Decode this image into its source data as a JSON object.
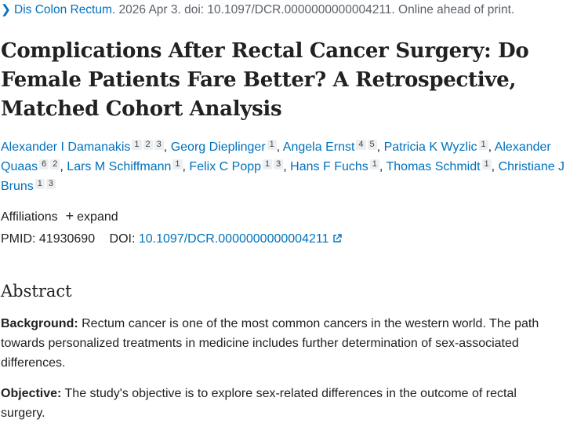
{
  "citation": {
    "journal": "Dis Colon Rectum.",
    "details": "2026 Apr 3. doi: 10.1097/DCR.0000000000004211. Online ahead of print."
  },
  "title": "Complications After Rectal Cancer Surgery: Do Female Patients Fare Better? A Retrospective, Matched Cohort Analysis",
  "author_separator": ",",
  "authors": [
    {
      "name": "Alexander I Damanakis",
      "affiliations": [
        "1",
        "2",
        "3"
      ]
    },
    {
      "name": "Georg Dieplinger",
      "affiliations": [
        "1"
      ]
    },
    {
      "name": "Angela Ernst",
      "affiliations": [
        "4",
        "5"
      ]
    },
    {
      "name": "Patricia K Wyzlic",
      "affiliations": [
        "1"
      ]
    },
    {
      "name": "Alexander Quaas",
      "affiliations": [
        "6",
        "2"
      ]
    },
    {
      "name": "Lars M Schiffmann",
      "affiliations": [
        "1"
      ]
    },
    {
      "name": "Felix C Popp",
      "affiliations": [
        "1",
        "3"
      ]
    },
    {
      "name": "Hans F Fuchs",
      "affiliations": [
        "1"
      ]
    },
    {
      "name": "Thomas Schmidt",
      "affiliations": [
        "1"
      ]
    },
    {
      "name": "Christiane J Bruns",
      "affiliations": [
        "1",
        "3"
      ]
    }
  ],
  "affiliations": {
    "label": "Affiliations",
    "toggle": "expand"
  },
  "identifiers": {
    "pmid_label": "PMID:",
    "pmid": "41930690",
    "doi_label": "DOI:",
    "doi": "10.1097/DCR.0000000000004211"
  },
  "abstract": {
    "heading": "Abstract",
    "sections": [
      {
        "label": "Background:",
        "text": "Rectum cancer is one of the most common cancers in the western world. The path towards personalized treatments in medicine includes further determination of sex-associated differences."
      },
      {
        "label": "Objective:",
        "text": "The study's objective is to explore sex-related differences in the outcome of rectal surgery."
      }
    ]
  }
}
